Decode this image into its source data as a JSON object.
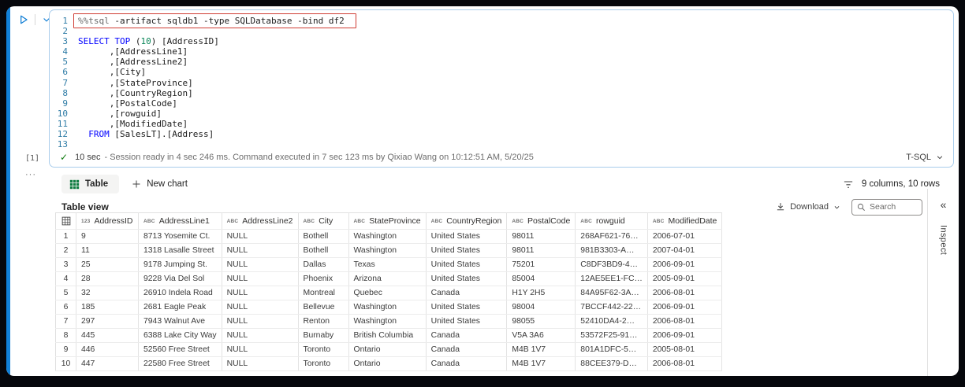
{
  "colors": {
    "accent_blue": "#1180d8",
    "cell_border": "#a9cdec",
    "keyword": "#0000ff",
    "number_literal": "#098658",
    "magic_command": "#6a6a6a",
    "error_box": "#cf3c33",
    "success_check": "#0f7b0f",
    "table_icon_green": "#107c41"
  },
  "cell": {
    "execution_count": "[1]",
    "language_label": "T-SQL",
    "overflow_menu": "···",
    "status": {
      "duration": "10 sec",
      "message": "- Session ready in 4 sec 246 ms. Command executed in 7 sec 123 ms by Qixiao Wang on 10:12:51 AM, 5/20/25"
    },
    "code_lines": [
      {
        "n": 1,
        "boxed": true,
        "tokens": [
          {
            "t": "%%tsql",
            "c": "magic"
          },
          {
            "t": " -artifact sqldb1 -type SQLDatabase -bind df2",
            "c": "plain"
          }
        ]
      },
      {
        "n": 2,
        "tokens": []
      },
      {
        "n": 3,
        "tokens": [
          {
            "t": "SELECT",
            "c": "kw"
          },
          {
            "t": " ",
            "c": "plain"
          },
          {
            "t": "TOP",
            "c": "kw"
          },
          {
            "t": " (",
            "c": "plain"
          },
          {
            "t": "10",
            "c": "num"
          },
          {
            "t": ") [AddressID]",
            "c": "plain"
          }
        ]
      },
      {
        "n": 4,
        "tokens": [
          {
            "t": "      ,[AddressLine1]",
            "c": "plain"
          }
        ]
      },
      {
        "n": 5,
        "tokens": [
          {
            "t": "      ,[AddressLine2]",
            "c": "plain"
          }
        ]
      },
      {
        "n": 6,
        "tokens": [
          {
            "t": "      ,[City]",
            "c": "plain"
          }
        ]
      },
      {
        "n": 7,
        "tokens": [
          {
            "t": "      ,[StateProvince]",
            "c": "plain"
          }
        ]
      },
      {
        "n": 8,
        "tokens": [
          {
            "t": "      ,[CountryRegion]",
            "c": "plain"
          }
        ]
      },
      {
        "n": 9,
        "tokens": [
          {
            "t": "      ,[PostalCode]",
            "c": "plain"
          }
        ]
      },
      {
        "n": 10,
        "tokens": [
          {
            "t": "      ,[rowguid]",
            "c": "plain"
          }
        ]
      },
      {
        "n": 11,
        "tokens": [
          {
            "t": "      ,[ModifiedDate]",
            "c": "plain"
          }
        ]
      },
      {
        "n": 12,
        "tokens": [
          {
            "t": "  ",
            "c": "plain"
          },
          {
            "t": "FROM",
            "c": "kw"
          },
          {
            "t": " [SalesLT].[Address]",
            "c": "plain"
          }
        ]
      },
      {
        "n": 13,
        "tokens": []
      }
    ]
  },
  "results": {
    "tabs": [
      {
        "label": "Table"
      }
    ],
    "new_chart_label": "New chart",
    "summary": "9 columns, 10 rows",
    "view_title": "Table view",
    "download_label": "Download",
    "search_placeholder": "Search",
    "inspect_label": "Inspect",
    "collapse_glyph": "«",
    "table": {
      "columns": [
        {
          "type": "123",
          "name": "AddressID"
        },
        {
          "type": "ABC",
          "name": "AddressLine1"
        },
        {
          "type": "ABC",
          "name": "AddressLine2"
        },
        {
          "type": "ABC",
          "name": "City"
        },
        {
          "type": "ABC",
          "name": "StateProvince"
        },
        {
          "type": "ABC",
          "name": "CountryRegion"
        },
        {
          "type": "ABC",
          "name": "PostalCode"
        },
        {
          "type": "ABC",
          "name": "rowguid"
        },
        {
          "type": "ABC",
          "name": "ModifiedDate"
        }
      ],
      "rows": [
        [
          "1",
          "9",
          "8713 Yosemite Ct.",
          "NULL",
          "Bothell",
          "Washington",
          "United States",
          "98011",
          "268AF621-76…",
          "2006-07-01"
        ],
        [
          "2",
          "11",
          "1318 Lasalle Street",
          "NULL",
          "Bothell",
          "Washington",
          "United States",
          "98011",
          "981B3303-A…",
          "2007-04-01"
        ],
        [
          "3",
          "25",
          "9178 Jumping St.",
          "NULL",
          "Dallas",
          "Texas",
          "United States",
          "75201",
          "C8DF3BD9-4…",
          "2006-09-01"
        ],
        [
          "4",
          "28",
          "9228 Via Del Sol",
          "NULL",
          "Phoenix",
          "Arizona",
          "United States",
          "85004",
          "12AE5EE1-FC…",
          "2005-09-01"
        ],
        [
          "5",
          "32",
          "26910 Indela Road",
          "NULL",
          "Montreal",
          "Quebec",
          "Canada",
          "H1Y 2H5",
          "84A95F62-3A…",
          "2006-08-01"
        ],
        [
          "6",
          "185",
          "2681 Eagle Peak",
          "NULL",
          "Bellevue",
          "Washington",
          "United States",
          "98004",
          "7BCCF442-22…",
          "2006-09-01"
        ],
        [
          "7",
          "297",
          "7943 Walnut Ave",
          "NULL",
          "Renton",
          "Washington",
          "United States",
          "98055",
          "52410DA4-2…",
          "2006-08-01"
        ],
        [
          "8",
          "445",
          "6388 Lake City Way",
          "NULL",
          "Burnaby",
          "British Columbia",
          "Canada",
          "V5A 3A6",
          "53572F25-91…",
          "2006-09-01"
        ],
        [
          "9",
          "446",
          "52560 Free Street",
          "NULL",
          "Toronto",
          "Ontario",
          "Canada",
          "M4B 1V7",
          "801A1DFC-5…",
          "2005-08-01"
        ],
        [
          "10",
          "447",
          "22580 Free Street",
          "NULL",
          "Toronto",
          "Ontario",
          "Canada",
          "M4B 1V7",
          "88CEE379-D…",
          "2006-08-01"
        ]
      ]
    }
  }
}
